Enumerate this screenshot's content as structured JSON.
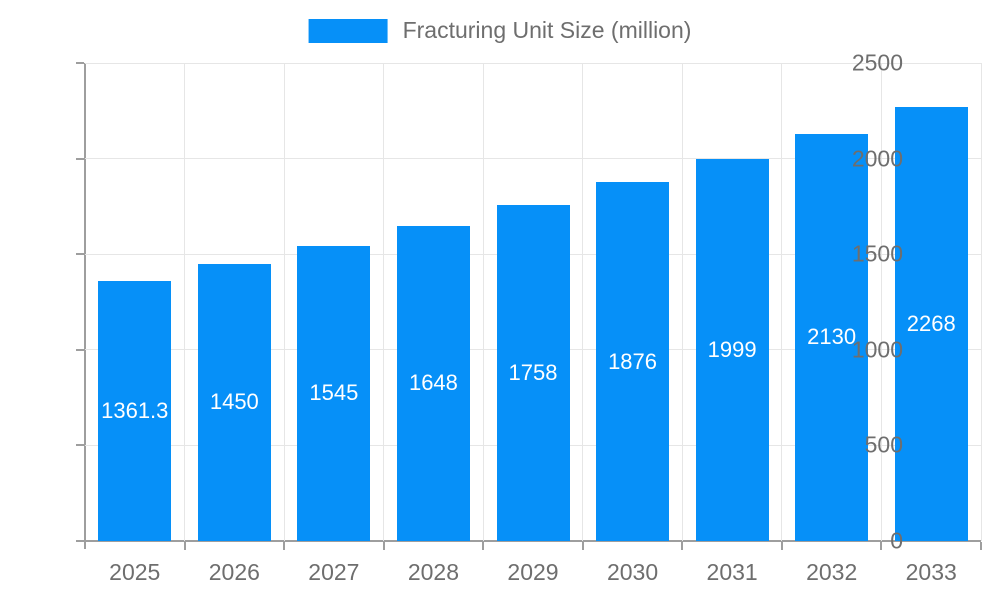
{
  "chart_data": {
    "type": "bar",
    "title": "Fracturing Unit Size (million)",
    "legend": "Fracturing Unit Size (million)",
    "legend_position": "top",
    "categories": [
      "2025",
      "2026",
      "2027",
      "2028",
      "2029",
      "2030",
      "2031",
      "2032",
      "2033"
    ],
    "values": [
      1361.3,
      1450,
      1545,
      1648,
      1758,
      1876,
      1999,
      2130,
      2268
    ],
    "value_labels": [
      "1361.3",
      "1450",
      "1545",
      "1648",
      "1758",
      "1876",
      "1999",
      "2130",
      "2268"
    ],
    "xlabel": "",
    "ylabel": "",
    "ylim": [
      0,
      2500
    ],
    "yticks": [
      0,
      500,
      1000,
      1500,
      2000,
      2500
    ],
    "grid": true,
    "colors": {
      "bar": "#0690f8",
      "bar_label": "#ffffff",
      "axis": "#9e9e9e",
      "grid": "#e6e6e6",
      "tick_label": "#6e6e6e",
      "background": "#ffffff"
    }
  }
}
